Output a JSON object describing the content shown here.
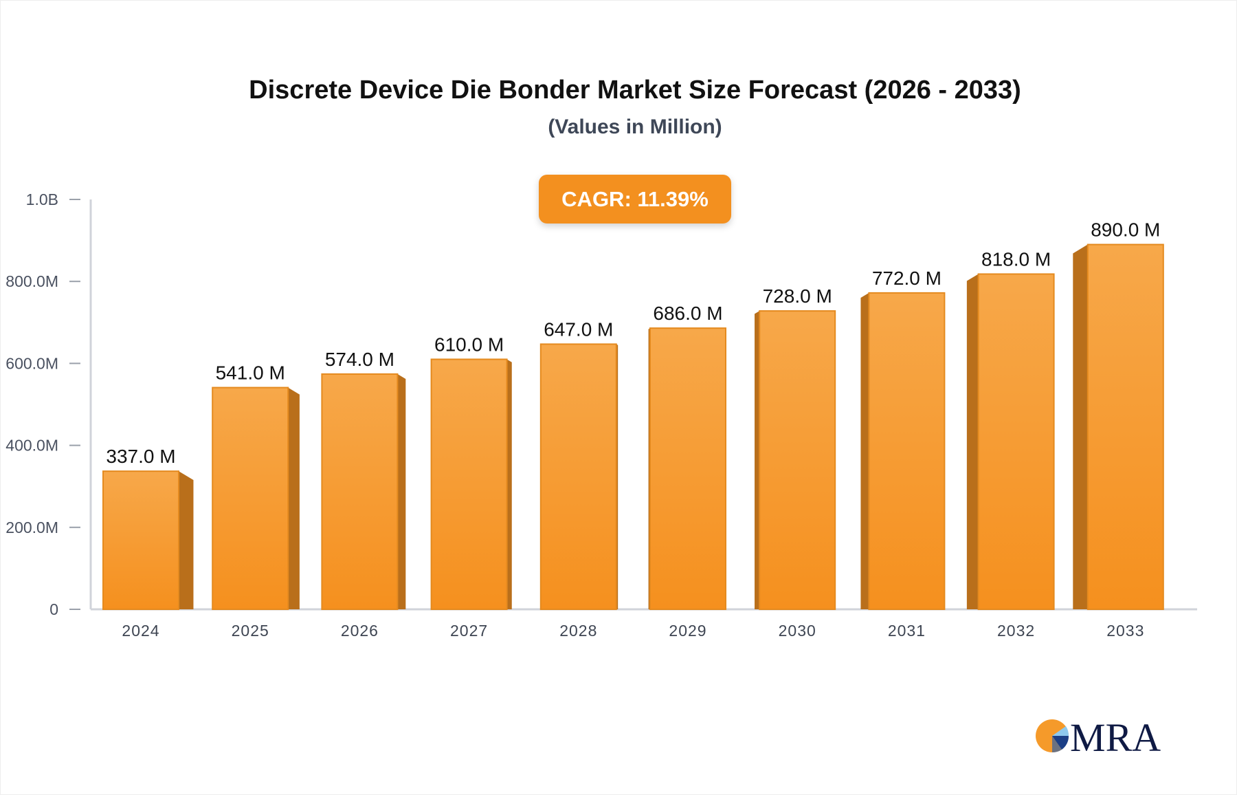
{
  "chart_data": {
    "type": "bar",
    "title": "Discrete Device Die Bonder Market Size Forecast (2026 - 2033)",
    "subtitle": "(Values in Million)",
    "categories": [
      "2024",
      "2025",
      "2026",
      "2027",
      "2028",
      "2029",
      "2030",
      "2031",
      "2032",
      "2033"
    ],
    "values": [
      337.0,
      541.0,
      574.0,
      610.0,
      647.0,
      686.0,
      728.0,
      772.0,
      818.0,
      890.0
    ],
    "data_labels": [
      "337.0 M",
      "541.0 M",
      "574.0 M",
      "610.0 M",
      "647.0 M",
      "686.0 M",
      "728.0 M",
      "772.0 M",
      "818.0 M",
      "890.0 M"
    ],
    "unit": "Million",
    "ylim": [
      0,
      1000
    ],
    "y_ticks": [
      0,
      200,
      400,
      600,
      800,
      1000
    ],
    "y_tick_labels": [
      "0",
      "200.0M",
      "400.0M",
      "600.0M",
      "800.0M",
      "1.0B"
    ],
    "xlabel": "",
    "ylabel": "",
    "grid": false,
    "bar_color": "#f59a30",
    "bar_side_color": "#b96f1b",
    "annotation": "CAGR: 11.39%"
  },
  "badge": {
    "text": "CAGR: 11.39%",
    "color": "#f3901f"
  },
  "logo": {
    "text": "MRA"
  }
}
